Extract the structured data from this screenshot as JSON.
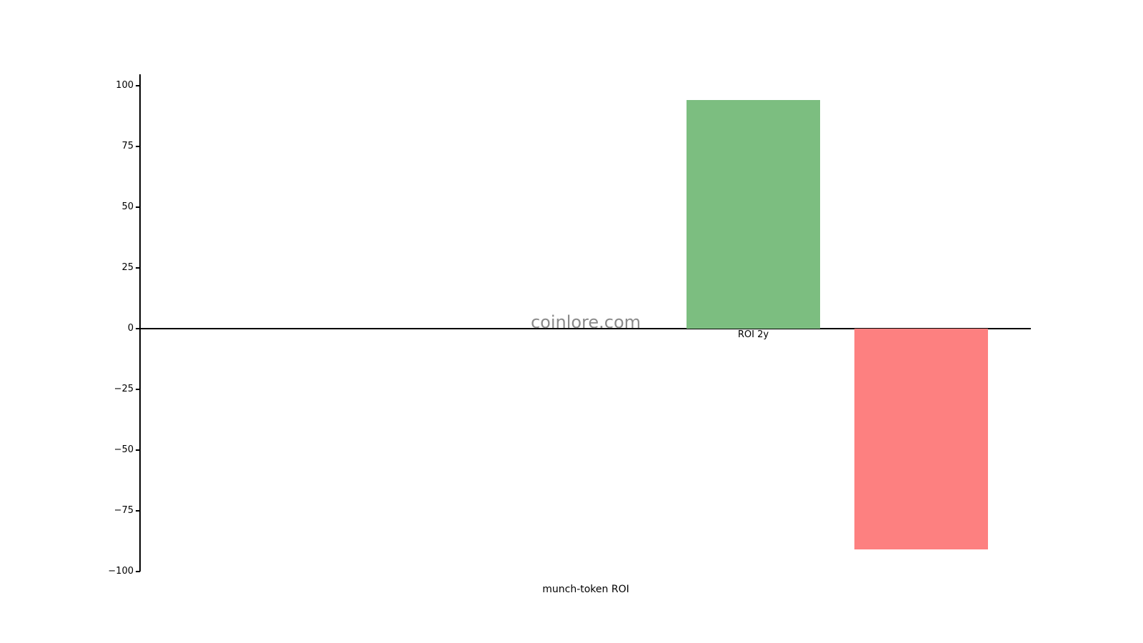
{
  "watermark": "coinlore.com",
  "chart_data": {
    "type": "bar",
    "title": "",
    "xlabel": "munch-token ROI",
    "ylabel": "",
    "ylim": [
      -100,
      104
    ],
    "grid": false,
    "legend": false,
    "categories": [
      "ROI 2y",
      ""
    ],
    "values": [
      94,
      -91
    ],
    "yticks": [
      {
        "value": 100,
        "label": "100"
      },
      {
        "value": 75,
        "label": "75"
      },
      {
        "value": 50,
        "label": "50"
      },
      {
        "value": 25,
        "label": "25"
      },
      {
        "value": 0,
        "label": "0"
      },
      {
        "value": -25,
        "label": "−25"
      },
      {
        "value": -50,
        "label": "−50"
      },
      {
        "value": -75,
        "label": "−75"
      },
      {
        "value": -100,
        "label": "−100"
      }
    ],
    "bars": [
      {
        "label": "ROI 2y",
        "value": 94,
        "color": "#7cbe80"
      },
      {
        "label": "",
        "value": -91,
        "color": "#fd8080"
      }
    ],
    "colors": {
      "positive": "#7cbe80",
      "negative": "#fd8080"
    }
  }
}
